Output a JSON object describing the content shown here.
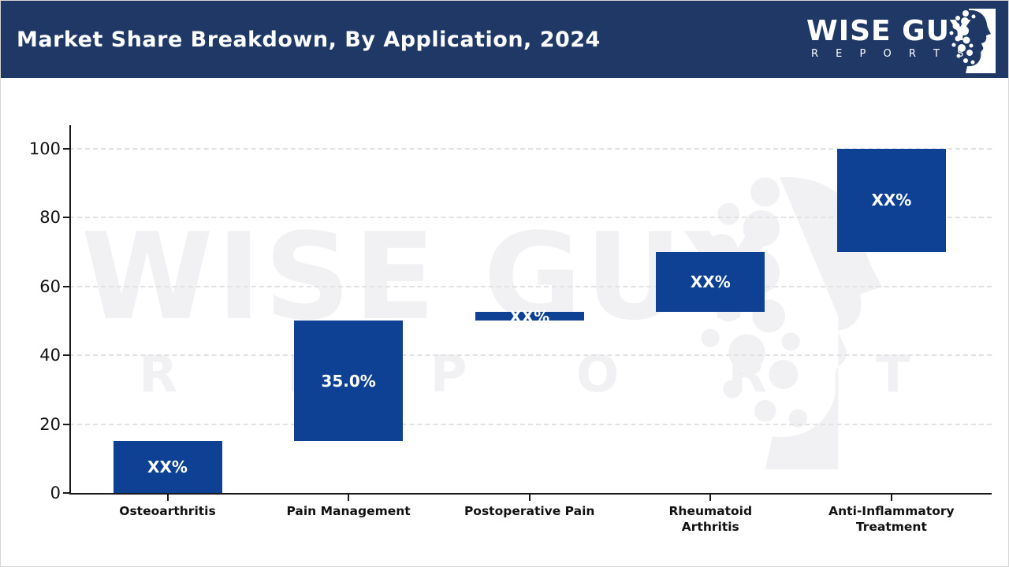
{
  "header": {
    "title": "Market Share Breakdown, By Application, 2024",
    "bg_color": "#1f3865",
    "logo": {
      "line1": "WISE GUY",
      "line2": "R E P O R T S"
    }
  },
  "watermark": {
    "line1": "WISE GUY",
    "line2": "R E P O R T S"
  },
  "chart_data": {
    "type": "bar",
    "subtype": "waterfall",
    "title": "Market Share Breakdown, By Application, 2024",
    "categories": [
      "Osteoarthritis",
      "Pain Management",
      "Postoperative Pain",
      "Rheumatoid\nArthritis",
      "Anti-Inflammatory\nTreatment"
    ],
    "series": [
      {
        "name": "Market Share",
        "segments": [
          {
            "category": "Osteoarthritis",
            "start": 0,
            "end": 15,
            "value_label": "XX%"
          },
          {
            "category": "Pain Management",
            "start": 15,
            "end": 50,
            "value_label": "35.0%"
          },
          {
            "category": "Postoperative Pain",
            "start": 50,
            "end": 52.5,
            "value_label": "XX%"
          },
          {
            "category": "Rheumatoid Arthritis",
            "start": 52.5,
            "end": 70,
            "value_label": "XX%"
          },
          {
            "category": "Anti-Inflammatory Treatment",
            "start": 70,
            "end": 100,
            "value_label": "XX%"
          }
        ]
      }
    ],
    "ylim": [
      0,
      106
    ],
    "yticks": [
      0,
      20,
      40,
      60,
      80,
      100
    ],
    "bar_color": "#0e4194",
    "grid": true,
    "grid_style": "dashed",
    "legend": false
  }
}
